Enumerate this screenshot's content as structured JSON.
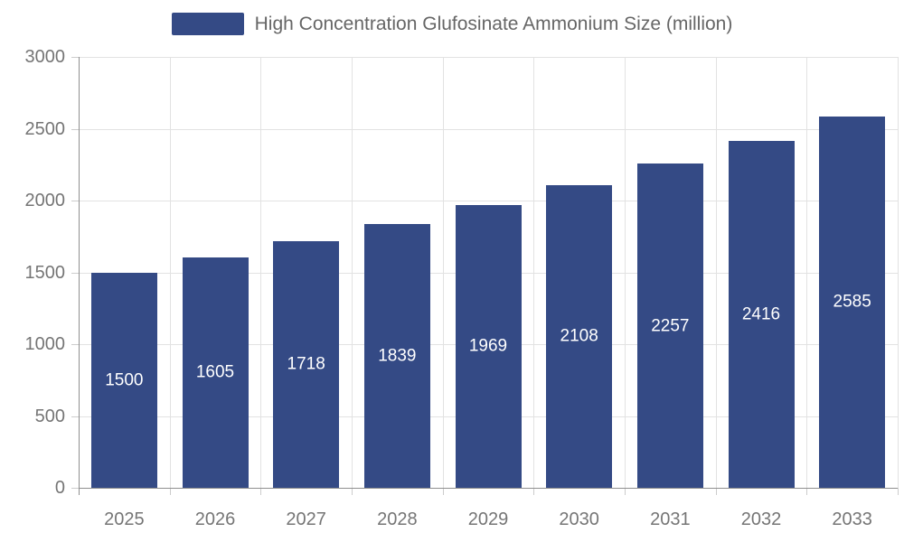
{
  "legend": {
    "label": "High Concentration Glufosinate Ammonium Size (million)"
  },
  "chart_data": {
    "type": "bar",
    "title": "High Concentration Glufosinate Ammonium Size (million)",
    "series_name": "High Concentration Glufosinate Ammonium Size (million)",
    "categories": [
      "2025",
      "2026",
      "2027",
      "2028",
      "2029",
      "2030",
      "2031",
      "2032",
      "2033"
    ],
    "values": [
      1500,
      1605,
      1718,
      1839,
      1969,
      2108,
      2257,
      2416,
      2585
    ],
    "value_labels": [
      "1500",
      "1605",
      "1718",
      "1839",
      "1969",
      "2108",
      "2257",
      "2416",
      "2585"
    ],
    "xlabel": "",
    "ylabel": "",
    "ylim": [
      0,
      3000
    ],
    "y_ticks": [
      0,
      500,
      1000,
      1500,
      2000,
      2500,
      3000
    ],
    "y_tick_labels": [
      "0",
      "500",
      "1000",
      "1500",
      "2000",
      "2500",
      "3000"
    ],
    "grid": true,
    "legend_position": "top",
    "colors": {
      "bar": "#344a85",
      "value_label": "#ffffff",
      "axis_text": "#757575",
      "legend_text": "#666666",
      "gridline": "#e2e2e2",
      "axis_line": "#8f8f8f",
      "tick": "#cccccc",
      "background": "#ffffff"
    }
  }
}
